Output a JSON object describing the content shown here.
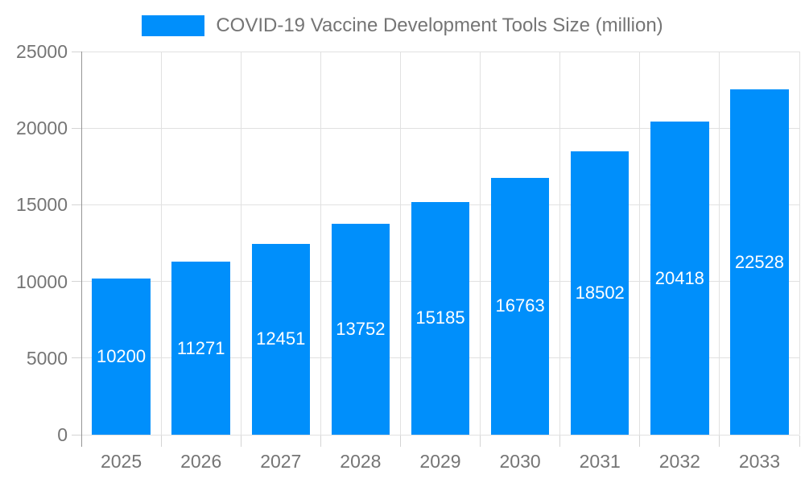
{
  "chart": {
    "legend": {
      "label": "COVID-19 Vaccine Development Tools Size (million)"
    }
  },
  "chart_data": {
    "type": "bar",
    "title": "COVID-19 Vaccine Development Tools Size (million)",
    "categories": [
      "2025",
      "2026",
      "2027",
      "2028",
      "2029",
      "2030",
      "2031",
      "2032",
      "2033"
    ],
    "values": [
      10200,
      11271,
      12451,
      13752,
      15185,
      16763,
      18502,
      20418,
      22528
    ],
    "series": [
      {
        "name": "COVID-19 Vaccine Development Tools Size (million)",
        "values": [
          10200,
          11271,
          12451,
          13752,
          15185,
          16763,
          18502,
          20418,
          22528
        ]
      }
    ],
    "xlabel": "",
    "ylabel": "",
    "ylim": [
      0,
      25000
    ],
    "yticks": [
      0,
      5000,
      10000,
      15000,
      20000,
      25000
    ],
    "grid": true,
    "legend_position": "top",
    "value_label_position": "inside-center",
    "colors": {
      "bar": "#008FFB",
      "value_label": "#ffffff",
      "axis_text": "#757575",
      "legend_text": "#757575",
      "gridline": "#e1e1e1",
      "axis_line": "#959595",
      "tick": "#d4d4d4",
      "background": "#ffffff"
    }
  }
}
